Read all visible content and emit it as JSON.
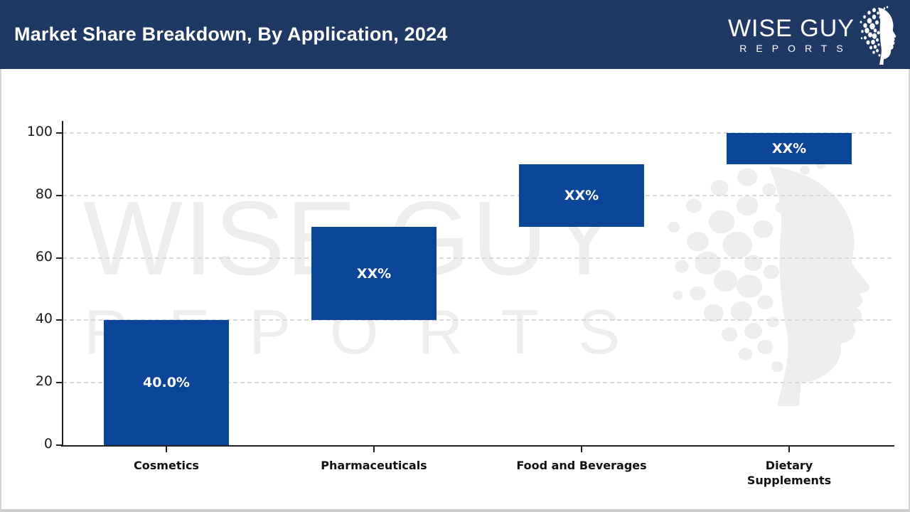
{
  "header": {
    "title": "Market Share Breakdown, By Application, 2024",
    "logo": {
      "line1": "WISE GUY",
      "line2": "REPORTS"
    }
  },
  "watermark": {
    "line1": "WISE GUY",
    "line2": "REPORTS"
  },
  "colors": {
    "header_bg": "#1f3864",
    "bar": "#0b4597",
    "axis": "#222222",
    "grid": "#d9d9d9",
    "watermark": "#ededed",
    "bar_label": "#ffffff"
  },
  "chart_data": {
    "type": "bar",
    "subtype": "waterfall",
    "title": "Market Share Breakdown, By Application, 2024",
    "categories": [
      "Cosmetics",
      "Pharmaceuticals",
      "Food and Beverages",
      "Dietary\nSupplements"
    ],
    "bars": [
      {
        "category": "Cosmetics",
        "start": 0,
        "end": 40,
        "label": "40.0%"
      },
      {
        "category": "Pharmaceuticals",
        "start": 40,
        "end": 70,
        "label": "XX%"
      },
      {
        "category": "Food and Beverages",
        "start": 70,
        "end": 90,
        "label": "XX%"
      },
      {
        "category": "Dietary\nSupplements",
        "start": 90,
        "end": 100,
        "label": "XX%"
      }
    ],
    "xlabel": "",
    "ylabel": "",
    "ylim": [
      0,
      100
    ],
    "yticks": [
      0,
      20,
      40,
      60,
      80,
      100
    ],
    "grid": "horizontal-dashed",
    "legend": "none"
  }
}
